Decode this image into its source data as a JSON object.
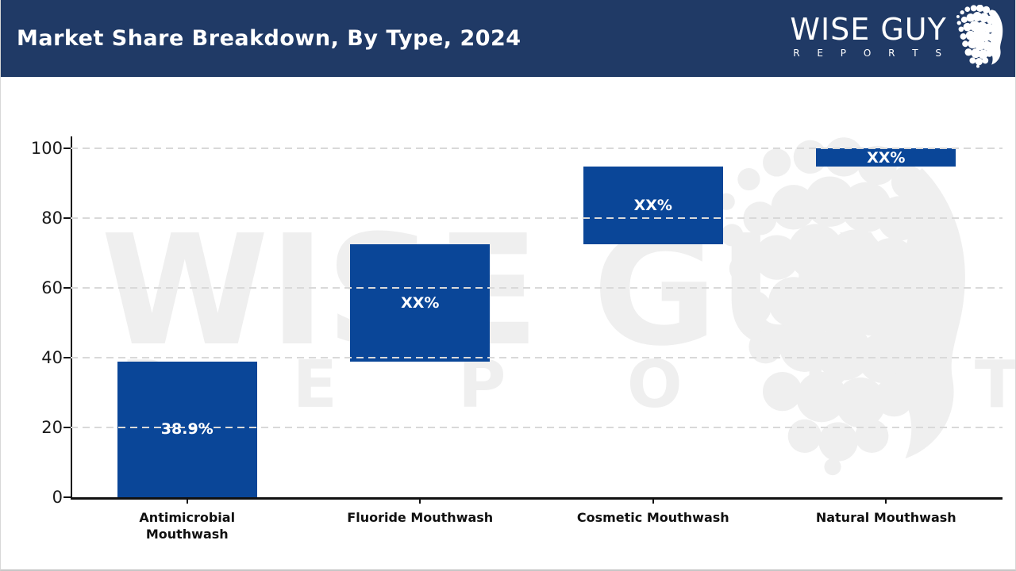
{
  "header": {
    "title": "Market Share Breakdown, By Type, 2024",
    "logo": {
      "name": "WISE GUY",
      "tagline": "R E P O R T S"
    }
  },
  "watermark": {
    "name": "WISE GUY",
    "tagline": "R E P O R T S"
  },
  "colors": {
    "header_bg": "#203a66",
    "bar_fill": "#0a4698",
    "bar_label": "#ffffff",
    "grid_line": "#d9d9d9",
    "axis_line": "#111111",
    "tick_label": "#1a1a1a",
    "watermark": "#efefef"
  },
  "chart_data": {
    "type": "bar",
    "subtype": "waterfall",
    "title": "Market Share Breakdown, By Type, 2024",
    "categories": [
      "Antimicrobial Mouthwash",
      "Fluoride Mouthwash",
      "Cosmetic Mouthwash",
      "Natural Mouthwash"
    ],
    "bars": [
      {
        "category": "Antimicrobial Mouthwash",
        "label_lines": [
          "Antimicrobial",
          "Mouthwash"
        ],
        "start": 0,
        "end": 38.9,
        "label": "38.9%"
      },
      {
        "category": "Fluoride Mouthwash",
        "label_lines": [
          "Fluoride Mouthwash"
        ],
        "start": 38.9,
        "end": 72.5,
        "label": "XX%"
      },
      {
        "category": "Cosmetic Mouthwash",
        "label_lines": [
          "Cosmetic Mouthwash"
        ],
        "start": 72.5,
        "end": 94.7,
        "label": "XX%"
      },
      {
        "category": "Natural Mouthwash",
        "label_lines": [
          "Natural Mouthwash"
        ],
        "start": 94.7,
        "end": 100,
        "label": "XX%"
      }
    ],
    "ylim": [
      0,
      100
    ],
    "yticks": [
      0,
      20,
      40,
      60,
      80,
      100
    ],
    "grid": "horizontal-dashed",
    "legend": "none",
    "xlabel": "",
    "ylabel": ""
  }
}
